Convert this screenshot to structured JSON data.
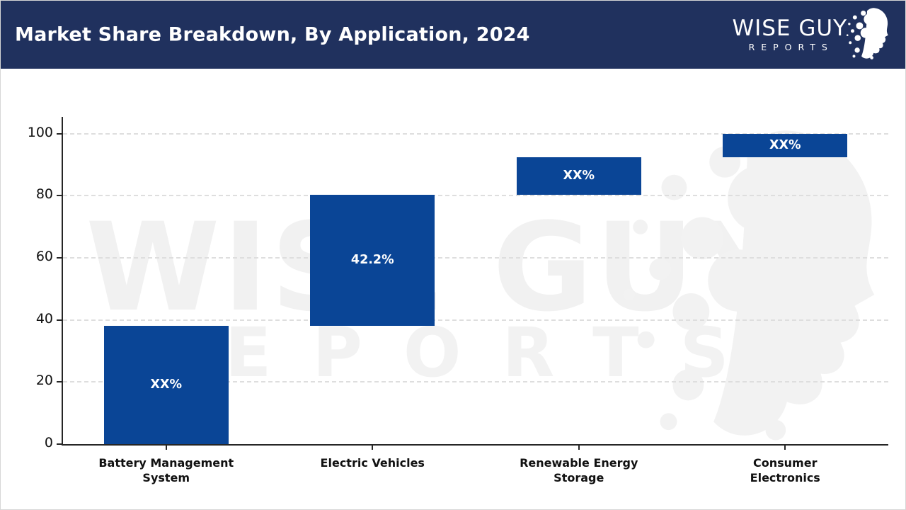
{
  "header": {
    "title": "Market Share Breakdown, By Application, 2024",
    "logo": {
      "line1": "WISE GUY",
      "line2": "REPORTS"
    }
  },
  "watermark": {
    "line1": "WISE GUY",
    "line2": "REPORTS"
  },
  "chart_data": {
    "type": "bar",
    "subtype": "waterfall",
    "title": "Market Share Breakdown, By Application, 2024",
    "categories": [
      "Battery Management\nSystem",
      "Electric Vehicles",
      "Renewable Energy\nStorage",
      "Consumer\nElectronics"
    ],
    "segments": [
      {
        "category": "Battery Management System",
        "start": 0,
        "end": 38.2,
        "label": "XX%"
      },
      {
        "category": "Electric Vehicles",
        "start": 38.2,
        "end": 80.4,
        "label": "42.2%"
      },
      {
        "category": "Renewable Energy Storage",
        "start": 80.4,
        "end": 92.4,
        "label": "XX%"
      },
      {
        "category": "Consumer Electronics",
        "start": 92.4,
        "end": 100,
        "label": "XX%"
      }
    ],
    "ylim": [
      0,
      100
    ],
    "yticks": [
      0,
      20,
      40,
      60,
      80,
      100
    ],
    "grid": "horizontal-dashed",
    "legend": "none",
    "bar_color": "#0a4596",
    "bar_label_color": "#ffffff",
    "header_color": "#20315e"
  }
}
